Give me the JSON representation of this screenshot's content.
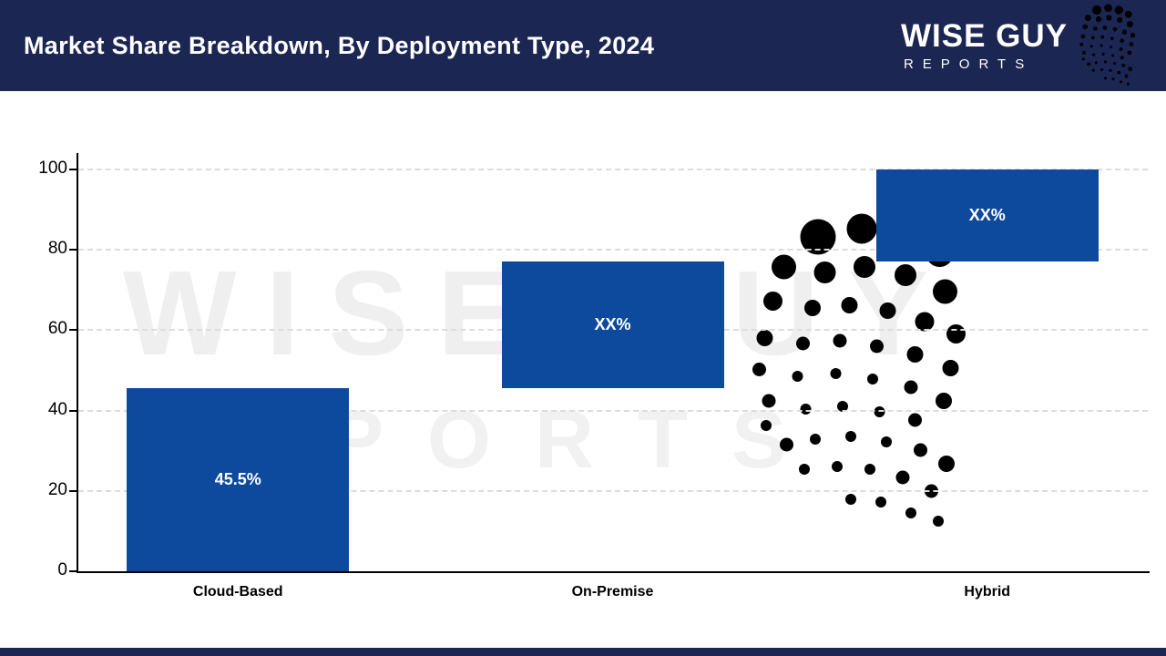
{
  "header": {
    "title": "Market Share Breakdown, By Deployment Type, 2024",
    "brand": {
      "line1": "WISE GUY",
      "line2": "REPORTS"
    }
  },
  "watermark": {
    "line1": "WISE GUY",
    "line2": "REPORTS"
  },
  "chart_data": {
    "type": "bar",
    "subtype": "floating-waterfall",
    "title": "Market Share Breakdown, By Deployment Type, 2024",
    "categories": [
      "Cloud-Based",
      "On-Premise",
      "Hybrid"
    ],
    "segments": [
      {
        "category": "Cloud-Based",
        "label": "45.5%",
        "start": 0,
        "end": 45.5
      },
      {
        "category": "On-Premise",
        "label": "XX%",
        "start": 45.5,
        "end": 77
      },
      {
        "category": "Hybrid",
        "label": "XX%",
        "start": 77,
        "end": 100
      }
    ],
    "yticks": [
      0,
      20,
      40,
      60,
      80,
      100
    ],
    "ylim": [
      0,
      100
    ],
    "xlabel": "",
    "ylabel": "",
    "grid": "horizontal-dashed",
    "legend": "none"
  },
  "colors": {
    "header_bg": "#1b2653",
    "footer_bg": "#1b2653",
    "bar": "#0d4a9e",
    "bar_label": "#ffffff",
    "axis": "#000000",
    "gridline": "#dcdcdc",
    "watermark": "#efefef"
  }
}
